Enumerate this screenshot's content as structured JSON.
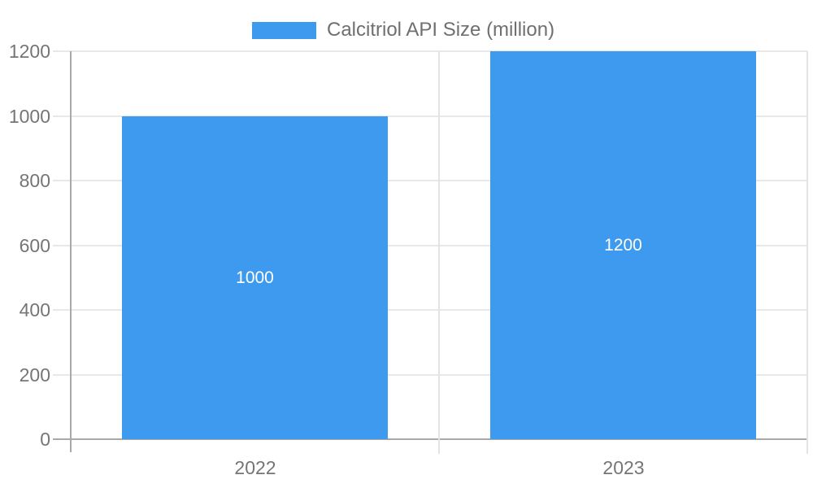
{
  "chart_data": {
    "type": "bar",
    "title": "",
    "legend": {
      "label": "Calcitriol API Size (million)",
      "position": "top"
    },
    "categories": [
      "2022",
      "2023"
    ],
    "series": [
      {
        "name": "Calcitriol API Size (million)",
        "values": [
          1000,
          1200
        ]
      }
    ],
    "bar_labels": [
      "1000",
      "1200"
    ],
    "yticks": [
      0,
      200,
      400,
      600,
      800,
      1000,
      1200
    ],
    "ylim": [
      0,
      1200
    ],
    "xlabel": "",
    "ylabel": "",
    "grid": true,
    "legend_position": "top-center"
  },
  "colors": {
    "bar": "#3E9AEE",
    "bar_label": "#ffffff",
    "legend_text": "#6f6f6f",
    "axis_text": "#757575",
    "gridline": "#e8e8e8",
    "divider": "#e4e4e4",
    "axis_line": "#a9a9a9"
  }
}
